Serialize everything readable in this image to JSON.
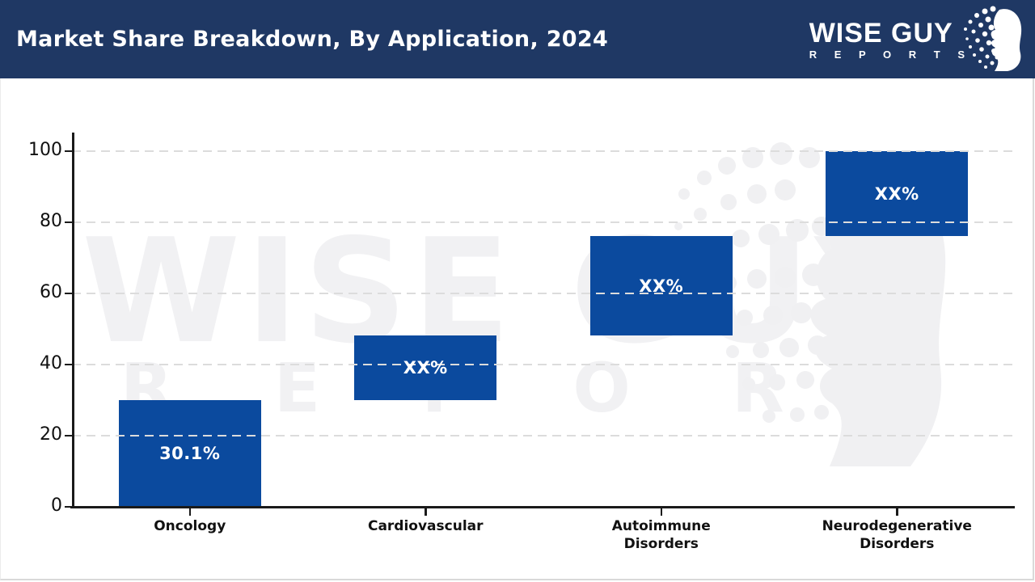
{
  "header": {
    "title": "Market Share Breakdown, By Application, 2024",
    "background": "#1f3864",
    "logo": {
      "name": "WISE GUY",
      "subtitle": "R E P O R T S"
    }
  },
  "watermark": {
    "name": "WISE GUY",
    "subtitle": "R E P O R T S"
  },
  "chart_data": {
    "type": "bar",
    "subtype": "waterfall",
    "title": "Market Share Breakdown, By Application, 2024",
    "categories": [
      "Oncology",
      "Cardiovascular",
      "Autoimmune Disorders",
      "Neurodegenerative Disorders"
    ],
    "category_lines": [
      [
        "Oncology"
      ],
      [
        "Cardiovascular"
      ],
      [
        "Autoimmune",
        "Disorders"
      ],
      [
        "Neurodegenerative",
        "Disorders"
      ]
    ],
    "segments": [
      {
        "category": "Oncology",
        "start": 0,
        "end": 30.1,
        "label": "30.1%"
      },
      {
        "category": "Cardiovascular",
        "start": 30.1,
        "end": 48.2,
        "label": "XX%"
      },
      {
        "category": "Autoimmune Disorders",
        "start": 48.2,
        "end": 76.1,
        "label": "XX%"
      },
      {
        "category": "Neurodegenerative Disorders",
        "start": 76.1,
        "end": 100,
        "label": "XX%"
      }
    ],
    "xlabel": "",
    "ylabel": "",
    "ylim": [
      0,
      100
    ],
    "yticks": [
      0,
      20,
      40,
      60,
      80,
      100
    ],
    "grid": "horizontal-dashed",
    "legend": "none",
    "bar_color": "#0b4a9e",
    "bar_label_color": "#ffffff",
    "axis_color": "#1a1a1a",
    "gridline_color": "#dcdcdc"
  }
}
